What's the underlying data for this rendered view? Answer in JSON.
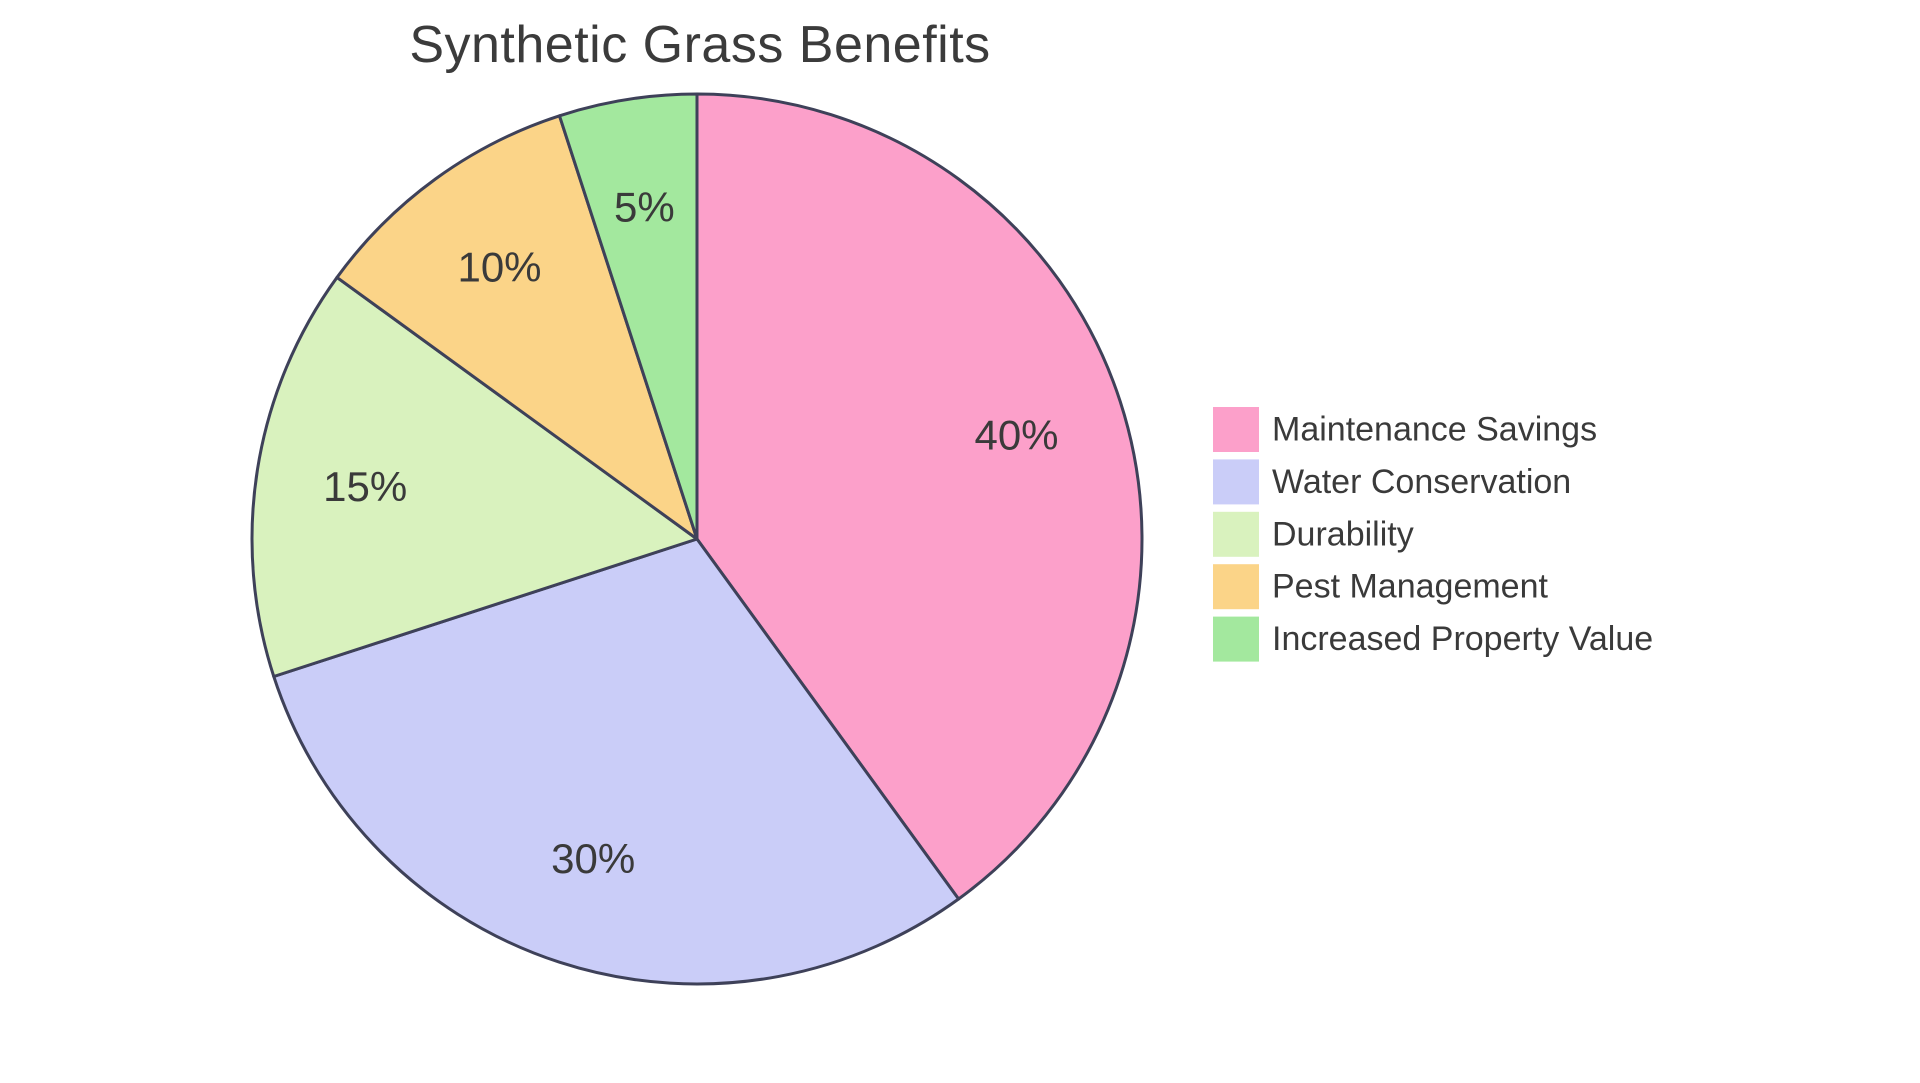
{
  "chart_data": {
    "type": "pie",
    "title": "Synthetic Grass Benefits",
    "labels": [
      "Maintenance Savings",
      "Water Conservation",
      "Durability",
      "Pest Management",
      "Increased Property Value"
    ],
    "values": [
      40,
      30,
      15,
      10,
      5
    ],
    "pct_labels": [
      "40%",
      "30%",
      "15%",
      "10%",
      "5%"
    ],
    "colors": [
      "#FCA0CA",
      "#CACDF8",
      "#D9F2BE",
      "#FBD488",
      "#A3E89E"
    ],
    "slice_stroke_color": "#3E4159",
    "title_color": "#3B3B3B",
    "label_color": "#3A3A3A",
    "legend_text_color": "#3A3A3A",
    "start_angle": "top",
    "direction": "clockwise",
    "legend_position": "right",
    "background": "#ffffff"
  }
}
